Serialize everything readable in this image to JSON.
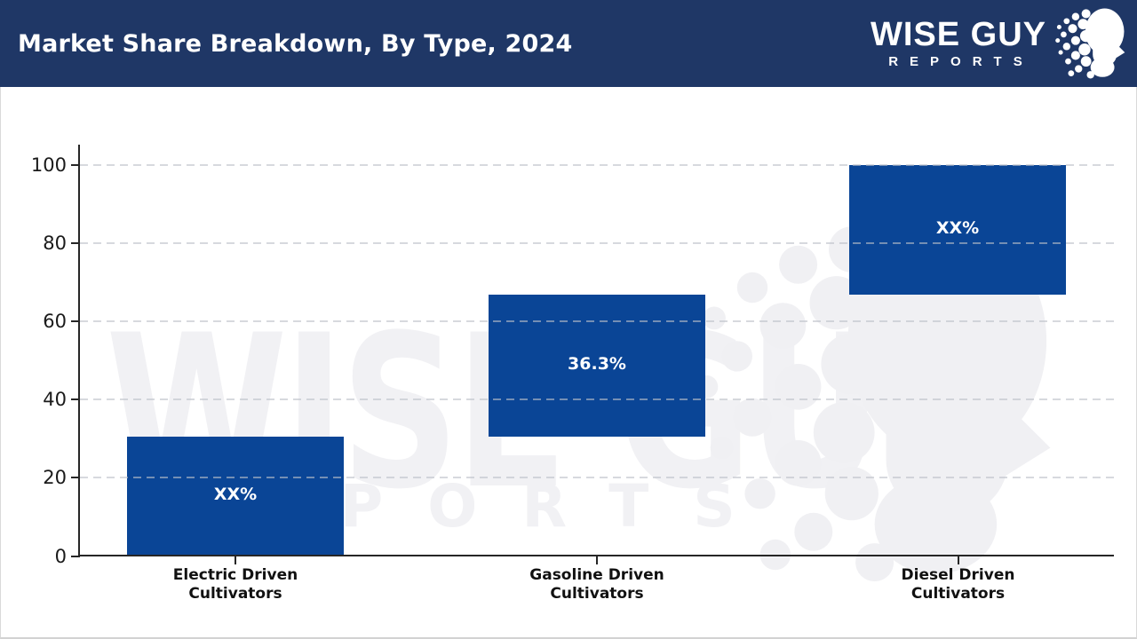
{
  "header": {
    "title": "Market Share Breakdown, By Type, 2024",
    "logo": {
      "name": "WISE GUY",
      "sub": "REPORTS"
    }
  },
  "watermark": {
    "name": "WISE GUY",
    "sub": "REPORTS"
  },
  "chart_data": {
    "type": "bar",
    "variant": "floating-segment-waterfall",
    "title": "Market Share Breakdown, By Type, 2024",
    "categories": [
      "Electric Driven Cultivators",
      "Gasoline Driven Cultivators",
      "Diesel Driven Cultivators"
    ],
    "category_lines": [
      [
        "Electric Driven",
        "Cultivators"
      ],
      [
        "Gasoline Driven",
        "Cultivators"
      ],
      [
        "Diesel Driven",
        "Cultivators"
      ]
    ],
    "segments": [
      {
        "category": "Electric Driven Cultivators",
        "start": 0,
        "end": 30.5,
        "label": "XX%"
      },
      {
        "category": "Gasoline Driven Cultivators",
        "start": 30.5,
        "end": 66.8,
        "label": "36.3%"
      },
      {
        "category": "Diesel Driven Cultivators",
        "start": 66.8,
        "end": 100,
        "label": "XX%"
      }
    ],
    "yticks": [
      0,
      20,
      40,
      60,
      80,
      100
    ],
    "ylim": [
      0,
      105
    ],
    "xlabel": "",
    "ylabel": "",
    "grid": "horizontal dashed, drawn over bars",
    "legend": "none",
    "bar_color": "#0a4596",
    "bar_label_color": "#ffffff"
  },
  "colors": {
    "header_bg": "#1f3766",
    "bar": "#0a4596",
    "axis": "#262626",
    "grid": "#c9ccd2",
    "watermark": "#f1f1f4",
    "text": "#111111"
  }
}
